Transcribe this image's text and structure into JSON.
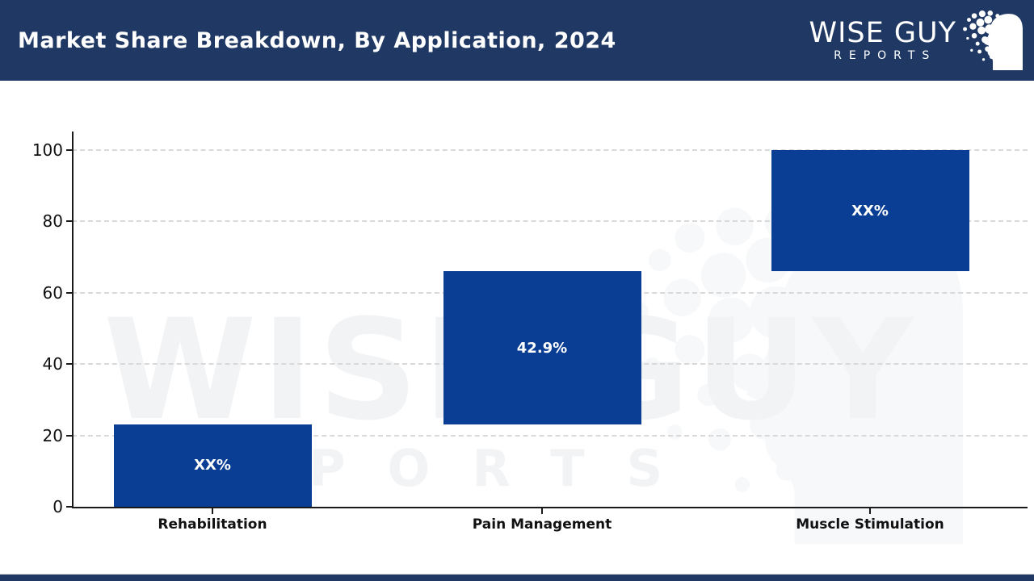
{
  "header": {
    "title": "Market Share Breakdown, By Application, 2024",
    "logo": {
      "line1": "WISE GUY",
      "line2": "REPORTS"
    }
  },
  "watermark": {
    "line1": "WISE GUY",
    "line2": "REPORTS"
  },
  "chart_data": {
    "type": "bar",
    "subtype": "floating-waterfall",
    "title": "Market Share Breakdown, By Application, 2024",
    "categories": [
      "Rehabilitation",
      "Pain Management",
      "Muscle Stimulation"
    ],
    "segments": [
      {
        "category": "Rehabilitation",
        "start": 0,
        "end": 23.1,
        "label": "XX%"
      },
      {
        "category": "Pain Management",
        "start": 23.1,
        "end": 66,
        "label": "42.9%"
      },
      {
        "category": "Muscle Stimulation",
        "start": 66,
        "end": 100,
        "label": "XX%"
      }
    ],
    "xlabel": "",
    "ylabel": "",
    "ylim": [
      0,
      100
    ],
    "yticks": [
      0,
      20,
      40,
      60,
      80,
      100
    ],
    "grid": "horizontal-dashed",
    "legend": "none",
    "bar_color": "#0a3d94",
    "colors": {
      "header_bg": "#1f3864",
      "footer_bg": "#1f3864",
      "bar": "#0a3d94",
      "gridline": "#d9d9d9",
      "axis": "#1a1a1a",
      "watermark": "#f2f3f5"
    }
  }
}
